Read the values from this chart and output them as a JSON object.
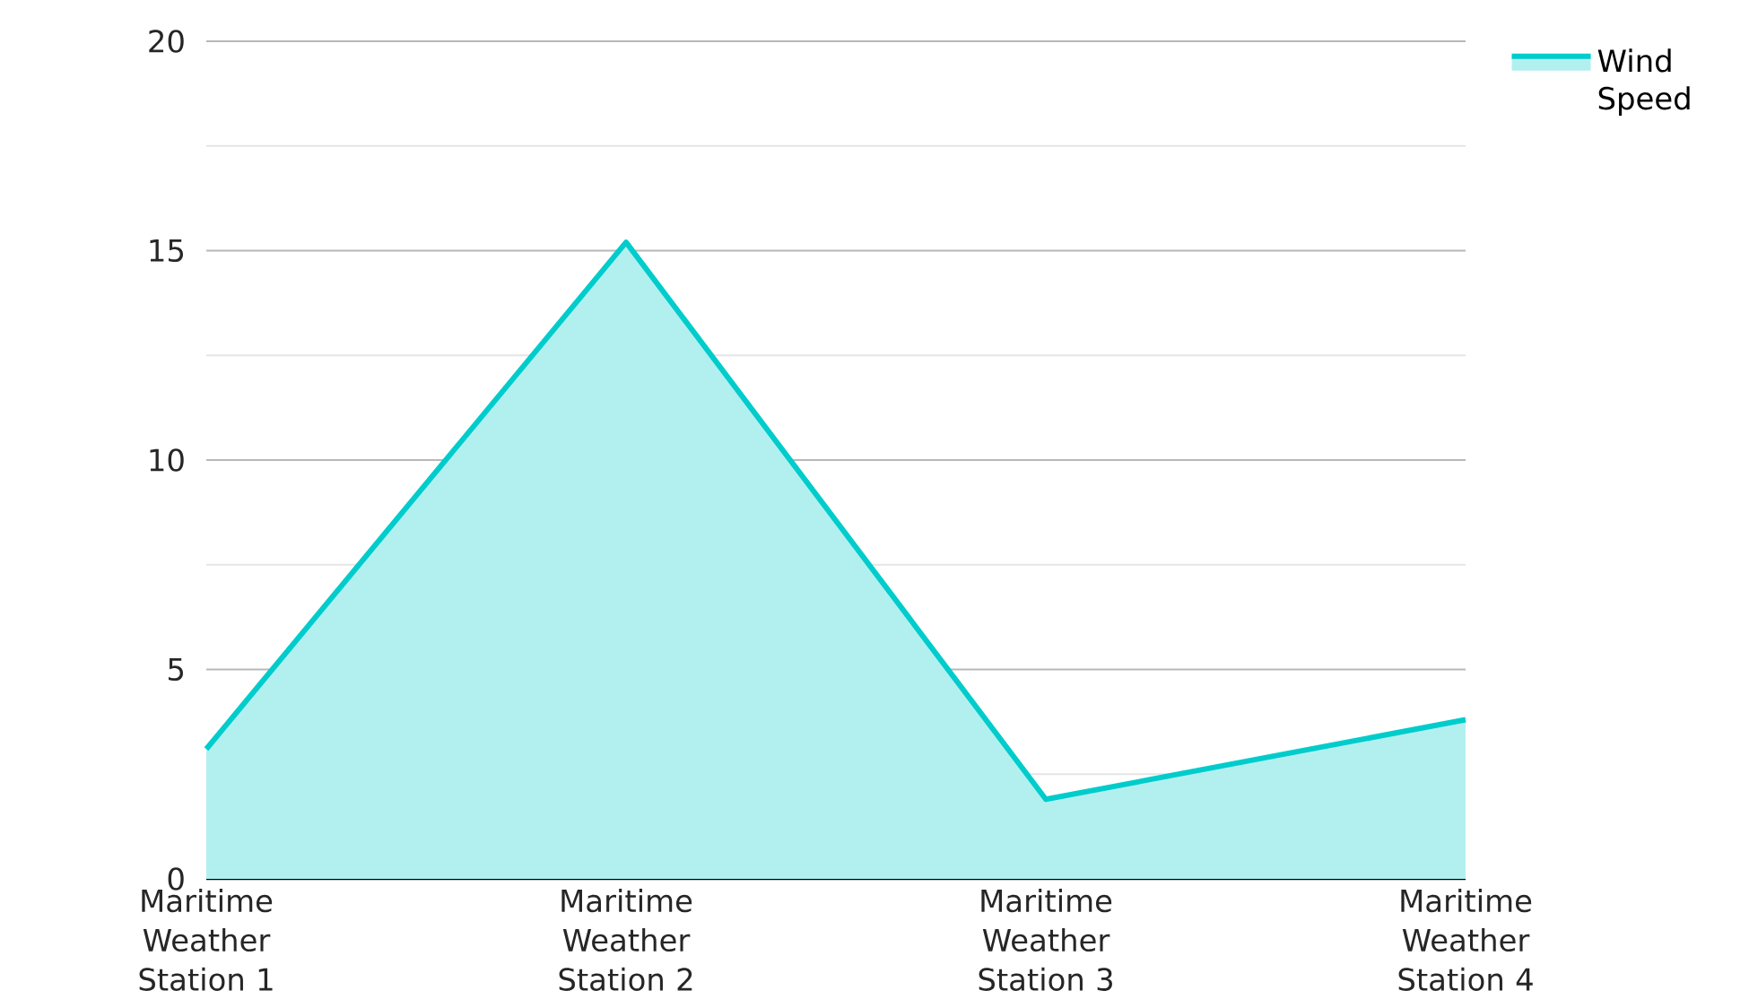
{
  "chart_data": {
    "type": "area",
    "categories": [
      "Maritime Weather Station 1",
      "Maritime Weather Station 2",
      "Maritime Weather Station 3",
      "Maritime Weather Station 4"
    ],
    "series": [
      {
        "name": "Wind Speed",
        "color": "#00cccc",
        "values": [
          3.1,
          15.2,
          1.9,
          3.8
        ]
      }
    ],
    "ylim": [
      0,
      20
    ],
    "yticks": [
      0,
      5,
      10,
      15,
      20
    ],
    "grid": "y",
    "legend": "top right"
  }
}
